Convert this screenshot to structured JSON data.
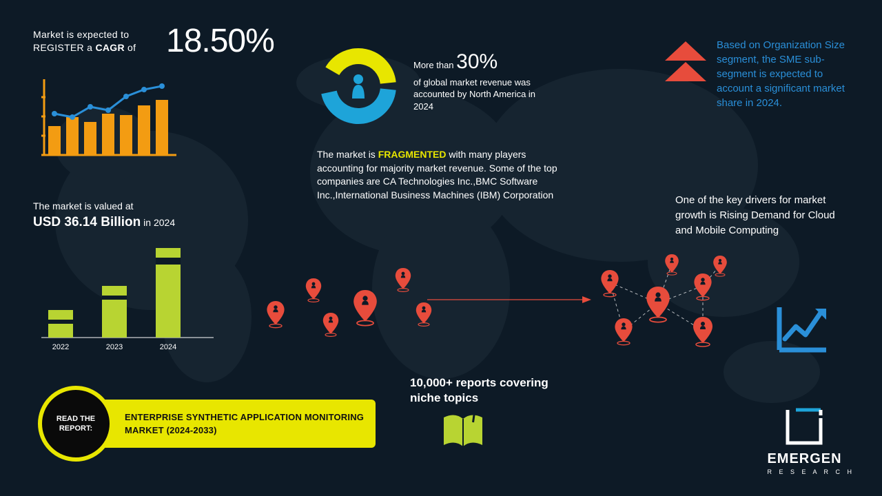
{
  "colors": {
    "bg": "#0d1a26",
    "map": "#273844",
    "orange": "#f39c12",
    "blue": "#2a8fd8",
    "brightBlue": "#1ea4d9",
    "yellow": "#e8e600",
    "lime": "#b8d432",
    "darkLime": "#93a829",
    "red": "#e74c3c",
    "white": "#ffffff",
    "teal": "#17a2b8"
  },
  "cagr": {
    "lead": "Market is expected to REGISTER a ",
    "cagrWord": "CAGR",
    "of": " of",
    "value": "18.50%",
    "lead_fontsize": 14,
    "value_fontsize": 48,
    "value_weight": 300
  },
  "barLineChart": {
    "bars": [
      42,
      55,
      48,
      60,
      58,
      72,
      80
    ],
    "barColor": "#f39c12",
    "barWidth": 18,
    "barGap": 8,
    "lineColor": "#2a8fd8",
    "markerRadius": 4,
    "linePoints": [
      60,
      55,
      70,
      65,
      85,
      95,
      100
    ],
    "baselineColor": "#f39c12",
    "leftTickColor": "#f39c12",
    "chartHeight": 110,
    "chartWidth": 200
  },
  "donut": {
    "yellowPct": 40,
    "tealPct": 45,
    "gapPct": 15,
    "yellow": "#e8e600",
    "teal": "#1ea4d9",
    "bg": "#0d1a26",
    "innerPersonColor": "#1ea4d9",
    "value": "30%",
    "valueLead": "More than ",
    "caption": "of global market revenue was accounted by North America in 2024",
    "value_fontsize": 30,
    "lead_fontsize": 14,
    "caption_fontsize": 13
  },
  "smeIcon": {
    "color": "#e74c3c"
  },
  "smeText": {
    "text": "Based on Organization Size segment, the SME sub-segment is expected to account a significant market share in 2024.",
    "color": "#2a8fd8",
    "fontsize": 15
  },
  "fragmentText": {
    "pre": "The market is ",
    "word": "FRAGMENTED",
    "post": " with many players accounting for majority market revenue. Some of the top companies are CA Technologies Inc.,BMC Software Inc.,International Business Machines (IBM) Corporation",
    "fontsize": 14
  },
  "valuation": {
    "lead": "The market is valued at",
    "value": "USD 36.14 Billion",
    "tail": " in 2024",
    "lead_fontsize": 14,
    "value_fontsize": 19,
    "value_weight": 700
  },
  "valuationChart": {
    "labels": [
      "2022",
      "2023",
      "2024"
    ],
    "bars": [
      {
        "h": 40,
        "gap": 6
      },
      {
        "h": 75,
        "gap": 6
      },
      {
        "h": 130,
        "gap": 10
      }
    ],
    "barColor": "#b8d432",
    "barWidth": 36,
    "gapColor": "#0d1a26",
    "chartHeight": 140,
    "baselineColor": "#ffffff"
  },
  "driverText": {
    "text": "One of the key drivers for market growth is Rising Demand for Cloud and Mobile Computing",
    "fontsize": 15
  },
  "growthIcon": {
    "color": "#2a8fd8"
  },
  "reports": {
    "headline": "10,000+ reports covering niche topics",
    "fontsize": 17,
    "iconColor": "#b8d432"
  },
  "cta": {
    "circleText": "READ THE REPORT:",
    "circleBorder": "#e8e600",
    "circleBorderWidth": 6,
    "circle_fontsize": 11,
    "bannerBg": "#e8e600",
    "bannerTextColor": "#111111",
    "bannerText": "ENTERPRISE SYNTHETIC APPLICATION MONITORING MARKET (2024-2033)",
    "banner_fontsize": 13
  },
  "brand": {
    "name": "EMERGEN",
    "sub": "R E S E A R C H",
    "squareColor": "#ffffff",
    "topAccent": "#1ea4d9",
    "name_fontsize": 20,
    "sub_fontsize": 9
  },
  "pins": {
    "color": "#e74c3c",
    "arrowColor": "#e74c3c"
  }
}
